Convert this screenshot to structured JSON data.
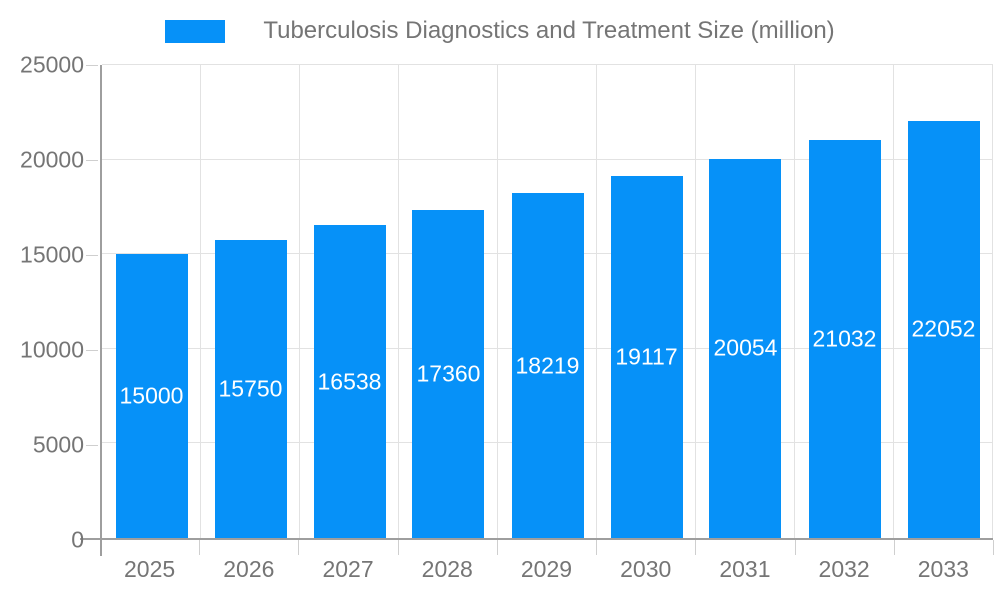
{
  "chart_data": {
    "type": "bar",
    "title": "Tuberculosis Diagnostics and Treatment Size (million)",
    "legend": {
      "position": "top",
      "entries": [
        "Tuberculosis Diagnostics and Treatment Size (million)"
      ]
    },
    "categories": [
      "2025",
      "2026",
      "2027",
      "2028",
      "2029",
      "2030",
      "2031",
      "2032",
      "2033"
    ],
    "values": [
      15000,
      15750,
      16538,
      17360,
      18219,
      19117,
      20054,
      21032,
      22052
    ],
    "xlabel": "",
    "ylabel": "",
    "ylim": [
      0,
      25000
    ],
    "yticks": [
      0,
      5000,
      10000,
      15000,
      20000,
      25000
    ],
    "grid": "on",
    "value_labels": "inside-center",
    "colors": {
      "bar": "#0691f8",
      "value_label": "#ffffff",
      "axis_text": "#757575",
      "axis_line": "#9e9e9e",
      "gridline": "#e2e2e2",
      "background": "#ffffff"
    }
  }
}
